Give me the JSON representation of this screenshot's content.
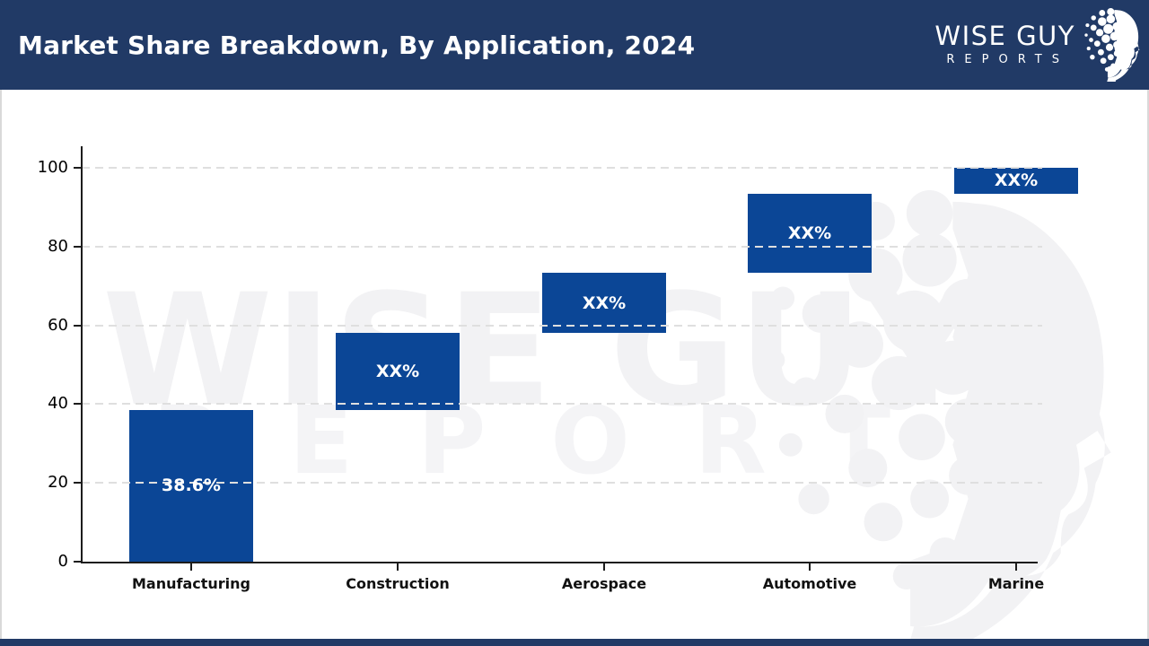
{
  "header": {
    "title": "Market Share Breakdown, By Application, 2024",
    "logo": {
      "line1": "WISE GUY",
      "line2": "REPORTS",
      "face_icon": "dotted-profile-head"
    }
  },
  "watermark": {
    "line1": "WISE GUY",
    "line2": "REPORTS",
    "face_icon": "dotted-profile-head"
  },
  "colors": {
    "header_bg": "#213a66",
    "bar": "#0b4696",
    "bar_label": "#ffffff",
    "axis": "#1c1c1c",
    "gridline": "#dfdfdf",
    "watermark": "#f2f2f4",
    "background": "#ffffff"
  },
  "chart_data": {
    "type": "bar",
    "subtype": "waterfall",
    "orientation": "vertical",
    "title": "Market Share Breakdown, By Application, 2024",
    "categories": [
      "Manufacturing",
      "Construction",
      "Aerospace",
      "Automotive",
      "Marine"
    ],
    "series": [
      {
        "name": "Market Share",
        "segments": [
          {
            "category": "Manufacturing",
            "start": 0,
            "end": 38.6,
            "label": "38.6%"
          },
          {
            "category": "Construction",
            "start": 38.6,
            "end": 58.0,
            "label": "XX%"
          },
          {
            "category": "Aerospace",
            "start": 58.0,
            "end": 73.3,
            "label": "XX%"
          },
          {
            "category": "Automotive",
            "start": 73.3,
            "end": 93.5,
            "label": "XX%"
          },
          {
            "category": "Marine",
            "start": 93.5,
            "end": 100,
            "label": "XX%"
          }
        ]
      }
    ],
    "xlabel": "",
    "ylabel": "",
    "ylim": [
      0,
      105.5
    ],
    "y_ticks": [
      0,
      20,
      40,
      60,
      80,
      100
    ],
    "grid": "horizontal-dashed",
    "legend": "none"
  }
}
